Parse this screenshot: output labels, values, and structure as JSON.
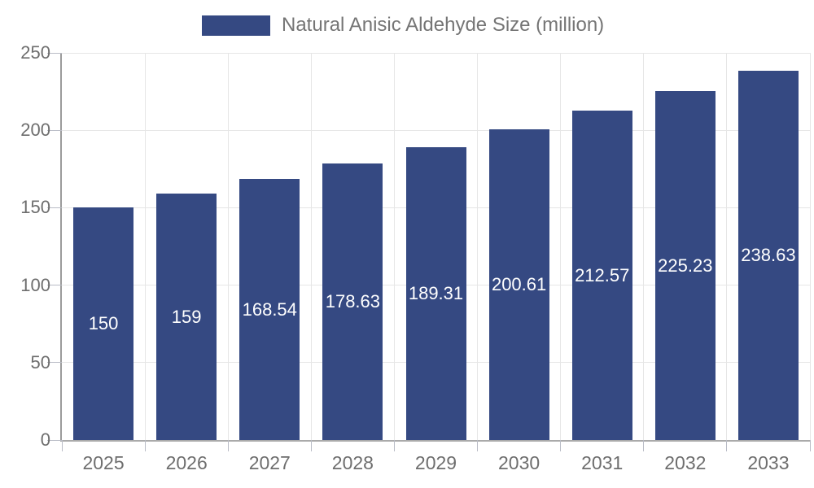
{
  "legend": {
    "label": "Natural Anisic Aldehyde Size (million)"
  },
  "chart_data": {
    "type": "bar",
    "title": "Natural Anisic Aldehyde Size (million)",
    "legend_entries": [
      "Natural Anisic Aldehyde Size (million)"
    ],
    "legend_position": "top-center",
    "categories": [
      "2025",
      "2026",
      "2027",
      "2028",
      "2029",
      "2030",
      "2031",
      "2032",
      "2033"
    ],
    "values": [
      150,
      159,
      168.54,
      178.63,
      189.31,
      200.61,
      212.57,
      225.23,
      238.63
    ],
    "bar_labels": [
      "150",
      "159",
      "168.54",
      "178.63",
      "189.31",
      "200.61",
      "212.57",
      "225.23",
      "238.63"
    ],
    "bar_label_position": "inside-center",
    "xlabel": "",
    "ylabel": "",
    "ylim": [
      0,
      250
    ],
    "ytick_step": 50,
    "yticks": [
      0,
      50,
      100,
      150,
      200,
      250
    ],
    "grid": true,
    "colors": {
      "bar": "#354982",
      "bar_label": "#ffffff",
      "grid": "#e6e6e6",
      "axis_tick": "#b9bcc6",
      "axis_label": "#6e6e6e",
      "legend_text": "#757575",
      "background": "#ffffff"
    }
  }
}
